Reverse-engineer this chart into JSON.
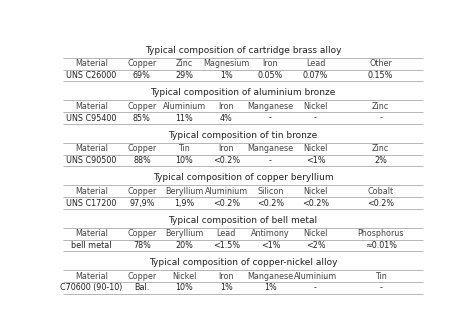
{
  "background_color": "#ffffff",
  "line_color": "#aaaaaa",
  "title_fontsize": 6.5,
  "header_fontsize": 5.8,
  "data_fontsize": 5.8,
  "title_color": "#222222",
  "header_color": "#444444",
  "data_color": "#222222",
  "sections": [
    {
      "title": "Typical composition of cartridge brass alloy",
      "headers": [
        "Material",
        "Copper",
        "Zinc",
        "Magnesium",
        "Iron",
        "Lead",
        "Other"
      ],
      "rows": [
        [
          "UNS C26000",
          "69%",
          "29%",
          "1%",
          "0.05%",
          "0.07%",
          "0.15%"
        ]
      ]
    },
    {
      "title": "Typical composition of aluminium bronze",
      "headers": [
        "Material",
        "Copper",
        "Aluminium",
        "Iron",
        "Manganese",
        "Nickel",
        "Zinc"
      ],
      "rows": [
        [
          "UNS C95400",
          "85%",
          "11%",
          "4%",
          "-",
          "-",
          "-"
        ]
      ]
    },
    {
      "title": "Typical composition of tin bronze",
      "headers": [
        "Material",
        "Copper",
        "Tin",
        "Iron",
        "Manganese",
        "Nickel",
        "Zinc"
      ],
      "rows": [
        [
          "UNS C90500",
          "88%",
          "10%",
          "<0.2%",
          "-",
          "<1%",
          "2%"
        ]
      ]
    },
    {
      "title": "Typical composition of copper beryllium",
      "headers": [
        "Material",
        "Copper",
        "Beryllium",
        "Aluminium",
        "Silicon",
        "Nickel",
        "Cobalt"
      ],
      "rows": [
        [
          "UNS C17200",
          "97,9%",
          "1,9%",
          "<0.2%",
          "<0.2%",
          "<0.2%",
          "<0.2%"
        ]
      ]
    },
    {
      "title": "Typical composition of bell metal",
      "headers": [
        "Material",
        "Copper",
        "Beryllium",
        "Lead",
        "Antimony",
        "Nickel",
        "Phosphorus"
      ],
      "rows": [
        [
          "bell metal",
          "78%",
          "20%",
          "<1.5%",
          "<1%",
          "<2%",
          "≈0.01%"
        ]
      ]
    },
    {
      "title": "Typical composition of copper-nickel alloy",
      "headers": [
        "Material",
        "Copper",
        "Nickel",
        "Iron",
        "Manganese",
        "Aluminium",
        "Tin"
      ],
      "rows": [
        [
          "C70600 (90-10)",
          "Bal.",
          "10%",
          "1%",
          "1%",
          "-",
          "-"
        ]
      ]
    }
  ]
}
